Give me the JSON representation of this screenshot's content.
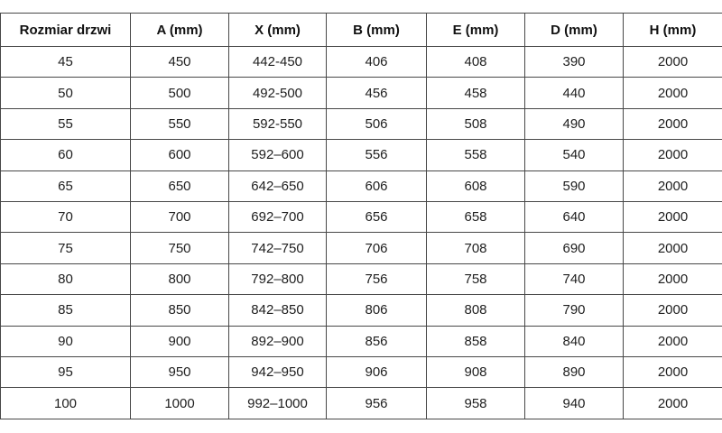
{
  "chart_data": {
    "type": "table",
    "columns": [
      "Rozmiar drzwi",
      "A (mm)",
      "X (mm)",
      "B (mm)",
      "E (mm)",
      "D (mm)",
      "H (mm)"
    ],
    "rows": [
      [
        "45",
        "450",
        "442-450",
        "406",
        "408",
        "390",
        "2000"
      ],
      [
        "50",
        "500",
        "492-500",
        "456",
        "458",
        "440",
        "2000"
      ],
      [
        "55",
        "550",
        "592-550",
        "506",
        "508",
        "490",
        "2000"
      ],
      [
        "60",
        "600",
        "592–600",
        "556",
        "558",
        "540",
        "2000"
      ],
      [
        "65",
        "650",
        "642–650",
        "606",
        "608",
        "590",
        "2000"
      ],
      [
        "70",
        "700",
        "692–700",
        "656",
        "658",
        "640",
        "2000"
      ],
      [
        "75",
        "750",
        "742–750",
        "706",
        "708",
        "690",
        "2000"
      ],
      [
        "80",
        "800",
        "792–800",
        "756",
        "758",
        "740",
        "2000"
      ],
      [
        "85",
        "850",
        "842–850",
        "806",
        "808",
        "790",
        "2000"
      ],
      [
        "90",
        "900",
        "892–900",
        "856",
        "858",
        "840",
        "2000"
      ],
      [
        "95",
        "950",
        "942–950",
        "906",
        "908",
        "890",
        "2000"
      ],
      [
        "100",
        "1000",
        "992–1000",
        "956",
        "958",
        "940",
        "2000"
      ]
    ],
    "layout": {
      "grid": "all-borders",
      "header_position": "top"
    }
  },
  "colors": {
    "background": "#ffffff",
    "border": "#474747",
    "text": "#1e1e1e",
    "header_text": "#111111"
  }
}
